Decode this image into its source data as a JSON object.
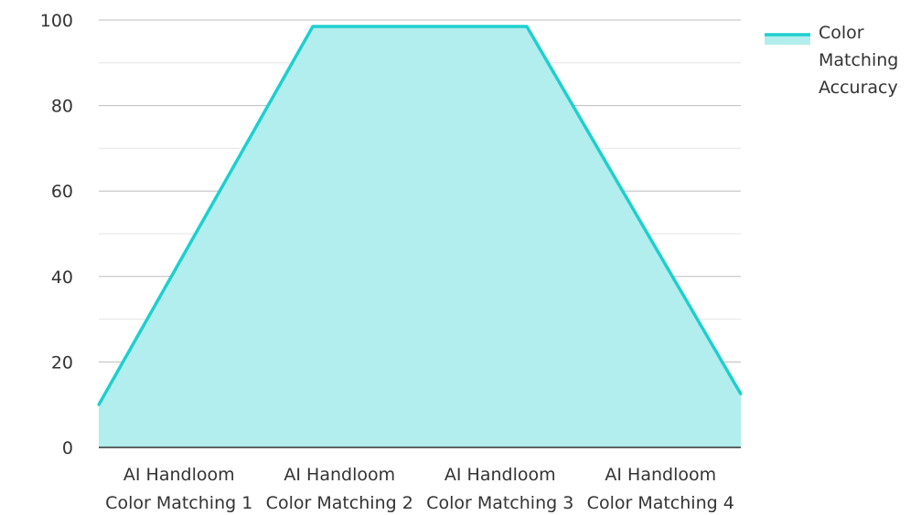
{
  "chart_data": {
    "type": "area",
    "title": "",
    "xlabel": "",
    "ylabel": "",
    "categories": [
      [
        "AI Handloom",
        "Color Matching 1"
      ],
      [
        "AI Handloom",
        "Color Matching 2"
      ],
      [
        "AI Handloom",
        "Color Matching 3"
      ],
      [
        "AI Handloom",
        "Color Matching 4"
      ]
    ],
    "series": [
      {
        "name": "Color Matching Accuracy",
        "name_lines": [
          "Color",
          "Matching",
          "Accuracy"
        ],
        "values": [
          10,
          98.5,
          98.5,
          12.5
        ],
        "line_color": "#1ecfcf",
        "fill_color": "#b2eeed"
      }
    ],
    "ylim": [
      0,
      100
    ],
    "y_ticks": [
      0,
      20,
      40,
      60,
      80,
      100
    ],
    "grid": true,
    "minor_grid": true,
    "legend": "top-right"
  }
}
